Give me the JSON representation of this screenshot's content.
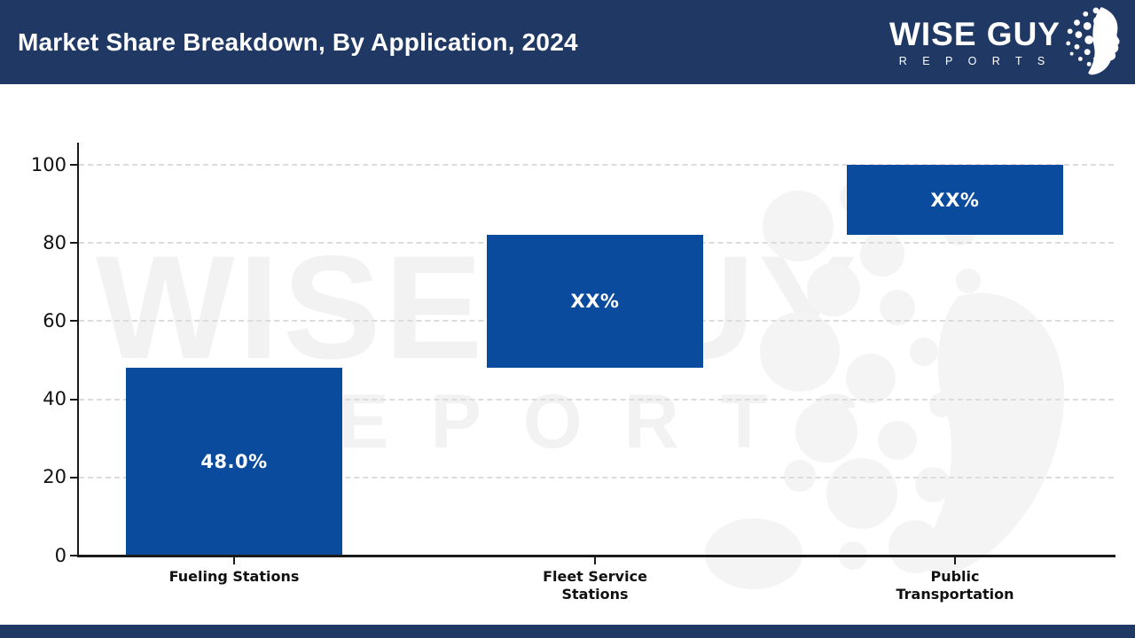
{
  "header": {
    "title": "Market Share Breakdown, By Application, 2024",
    "logo": {
      "name": "WISE GUY",
      "sub": "R E P O R T S"
    }
  },
  "watermark": {
    "name": "WISE GUY",
    "sub": "REPORTS"
  },
  "chart_data": {
    "type": "bar",
    "subtype": "waterfall",
    "title": "Market Share Breakdown, By Application, 2024",
    "categories": [
      "Fueling Stations",
      "Fleet Service Stations",
      "Public Transportation"
    ],
    "categories_display": [
      [
        "Fueling Stations"
      ],
      [
        "Fleet Service",
        "Stations"
      ],
      [
        "Public",
        "Transportation"
      ]
    ],
    "series": [
      {
        "name": "Market Share (%)",
        "segments": [
          {
            "category": "Fueling Stations",
            "start": 0,
            "end": 48,
            "label": "48.0%"
          },
          {
            "category": "Fleet Service Stations",
            "start": 48,
            "end": 82,
            "label": "XX%"
          },
          {
            "category": "Public Transportation",
            "start": 82,
            "end": 100,
            "label": "XX%"
          }
        ]
      }
    ],
    "xlabel": "",
    "ylabel": "",
    "ylim": [
      0,
      100
    ],
    "yticks": [
      0,
      20,
      40,
      60,
      80,
      100
    ],
    "grid": "horizontal-dashed",
    "legend": "none"
  },
  "colors": {
    "header_bg": "#1f3864",
    "footer_bg": "#1f3864",
    "title_text": "#ffffff",
    "bar": "#0a4b9e",
    "bar_label": "#ffffff",
    "axis": "#1a1a1a",
    "gridline": "#dcdcdc",
    "watermark": "#f2f2f2"
  }
}
